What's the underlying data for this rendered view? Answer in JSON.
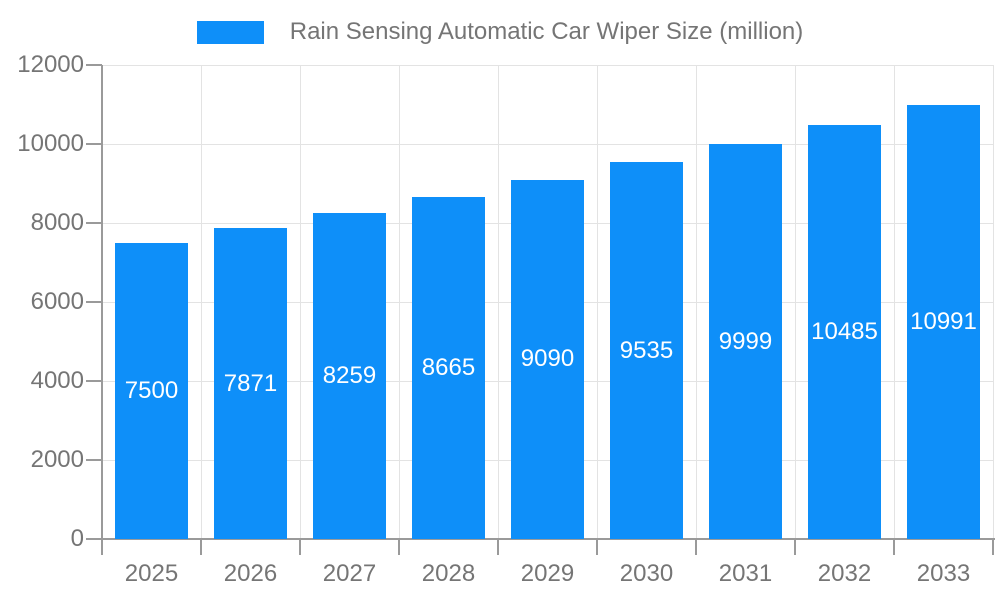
{
  "legend": {
    "label": "Rain Sensing Automatic Car Wiper Size (million)",
    "swatch_color": "#0e8ff9"
  },
  "chart_data": {
    "type": "bar",
    "title": "Rain Sensing Automatic Car Wiper Size (million)",
    "categories": [
      "2025",
      "2026",
      "2027",
      "2028",
      "2029",
      "2030",
      "2031",
      "2032",
      "2033"
    ],
    "values": [
      7500,
      7871,
      8259,
      8665,
      9090,
      9535,
      9999,
      10485,
      10991
    ],
    "xlabel": "",
    "ylabel": "",
    "ylim": [
      0,
      12000
    ],
    "yticks": [
      0,
      2000,
      4000,
      6000,
      8000,
      10000,
      12000
    ],
    "grid": true,
    "legend_position": "top",
    "bar_label_position": "inside-center",
    "colors": {
      "bar": "#0e8ff9",
      "bar_label": "#ffffff",
      "axis": "#9a9a9a",
      "grid": "#e3e3e3",
      "text": "#757575"
    }
  }
}
